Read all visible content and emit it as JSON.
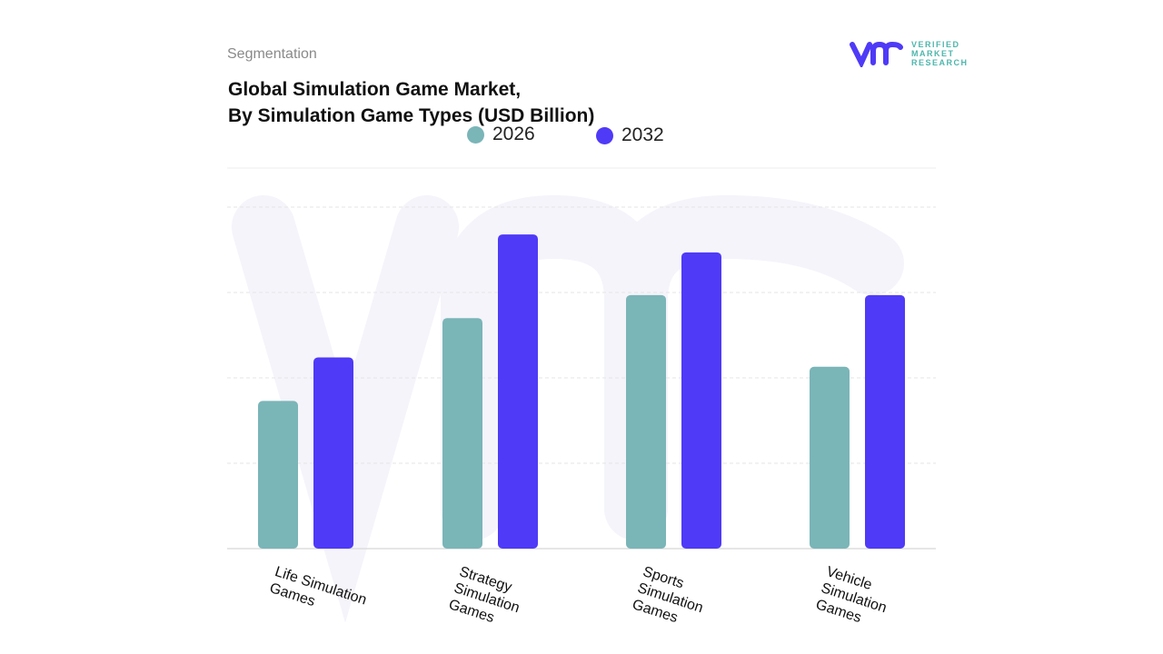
{
  "header": {
    "section": "Segmentation",
    "title_line1": "Global Simulation Game Market,",
    "title_line2": "By Simulation Game Types (USD Billion)"
  },
  "logo": {
    "line1": "VERIFIED",
    "line2": "MARKET",
    "line3": "RESEARCH"
  },
  "colors": {
    "s2026": "#7ab5b8",
    "s2032": "#4f3af7",
    "grid": "#e6e6e6"
  },
  "chart_data": {
    "type": "bar",
    "title": "Global Simulation Game Market, By Simulation Game Types (USD Billion)",
    "categories": [
      "Life Simulation Games",
      "Strategy Simulation Games",
      "Sports Simulation Games",
      "Vehicle Simulation Games"
    ],
    "series": [
      {
        "name": "2026",
        "values": [
          1.73,
          2.7,
          2.97,
          2.13
        ]
      },
      {
        "name": "2032",
        "values": [
          2.24,
          3.68,
          3.47,
          2.97
        ]
      }
    ],
    "xlabel": "",
    "ylabel": "USD Billion",
    "ylim": [
      0,
      4
    ],
    "grid": true,
    "legend": "top-center"
  }
}
